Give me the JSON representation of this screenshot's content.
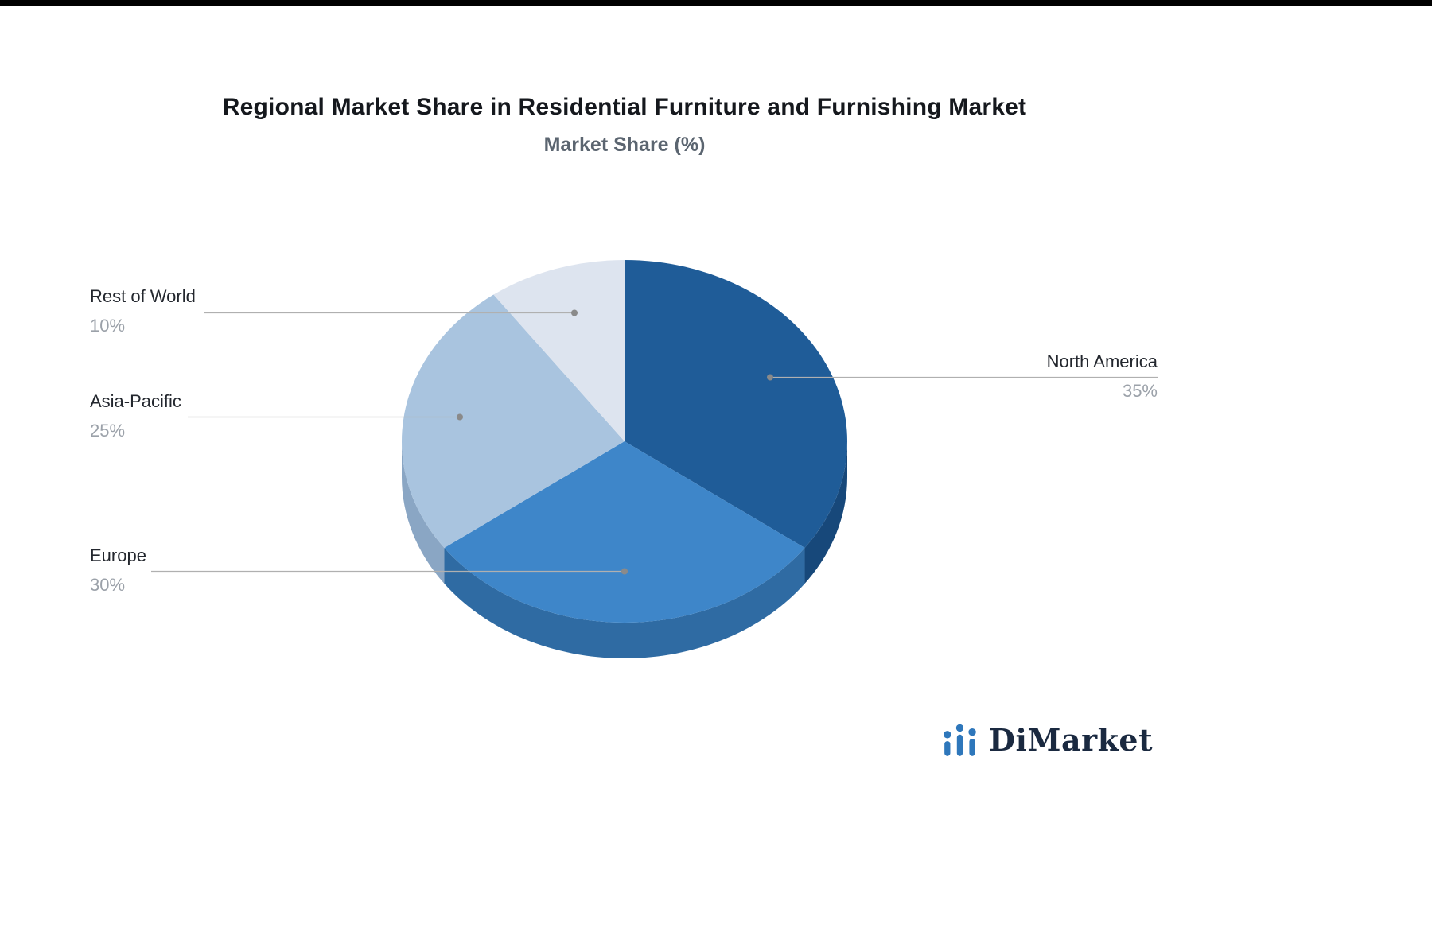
{
  "page": {
    "title": "Regional Market Share in Residential Furniture and Furnishing Market",
    "subtitle": "Market Share (%)"
  },
  "chart_data": {
    "type": "pie",
    "title": "Regional Market Share in Residential Furniture and Furnishing Market",
    "subtitle": "Market Share (%)",
    "unit": "%",
    "style": "3d-pie",
    "start_angle_deg": 0,
    "direction": "clockwise",
    "legend_position": "none",
    "labels": [
      "North America",
      "Europe",
      "Asia-Pacific",
      "Rest of World"
    ],
    "values": [
      35,
      30,
      25,
      10
    ],
    "value_labels": [
      "35%",
      "30%",
      "25%",
      "10%"
    ],
    "colors": [
      "#1f5c98",
      "#3e86c9",
      "#a9c4df",
      "#dde4ef"
    ],
    "side_colors": [
      "#17487a",
      "#2f6ba3",
      "#8aa6c4",
      "#b9c6d8"
    ],
    "label_positions": [
      "right",
      "left",
      "left",
      "left"
    ],
    "leader_line_color": "#b0b0b0",
    "leader_dot_color": "#8a8a8a"
  },
  "branding": {
    "logo_text": "DiMarket",
    "logo_icon": "bar-chart-icon",
    "logo_icon_color": "#2e77bb"
  }
}
